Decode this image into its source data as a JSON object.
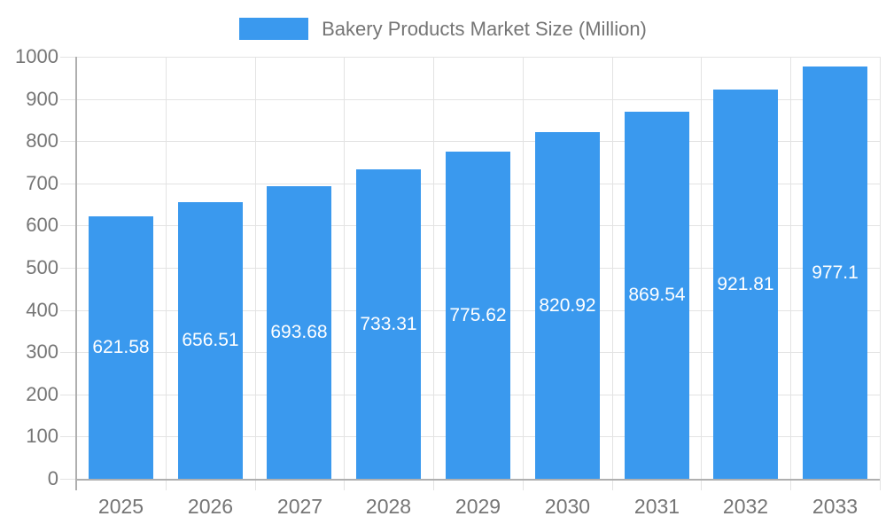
{
  "chart_data": {
    "type": "bar",
    "title": "Bakery Products Market Size (Million)",
    "legend": [
      "Bakery Products Market Size (Million)"
    ],
    "legend_position": "top-center",
    "categories": [
      "2025",
      "2026",
      "2027",
      "2028",
      "2029",
      "2030",
      "2031",
      "2032",
      "2033"
    ],
    "values": [
      621.58,
      656.51,
      693.68,
      733.31,
      775.62,
      820.92,
      869.54,
      921.81,
      977.1
    ],
    "value_labels": [
      "621.58",
      "656.51",
      "693.68",
      "733.31",
      "775.62",
      "820.92",
      "869.54",
      "921.81",
      "977.1"
    ],
    "value_label_position": "inside-center",
    "xlabel": "",
    "ylabel": "",
    "ylim": [
      0,
      1000
    ],
    "yticks": [
      0,
      100,
      200,
      300,
      400,
      500,
      600,
      700,
      800,
      900,
      1000
    ],
    "grid": true,
    "colors": {
      "bar": "#3A99EE",
      "grid": "#E3E3E3",
      "axis": "#AFAFAF",
      "text": "#757575",
      "value_label": "#FFFFFF",
      "background": "#FFFFFF"
    }
  }
}
